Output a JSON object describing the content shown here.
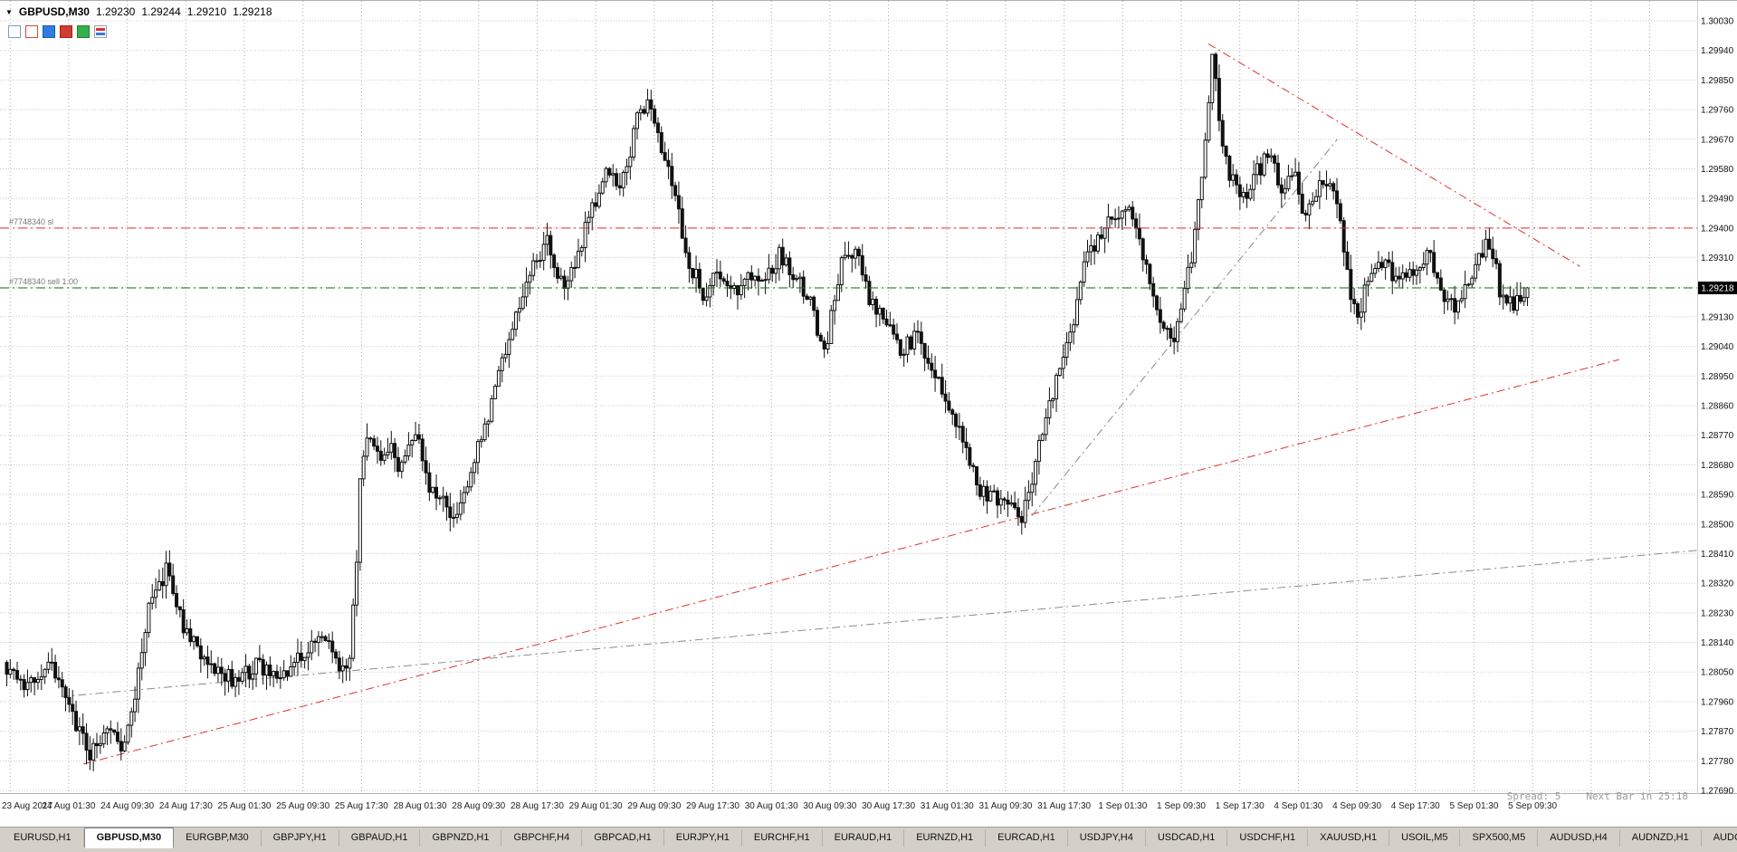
{
  "ui": {
    "icons": {
      "chart_menu": "▼"
    },
    "title": {
      "symbol": "GBPUSD,M30",
      "open": "1.29230",
      "high": "1.29244",
      "low": "1.29210",
      "close": "1.29218"
    },
    "toolbar": {
      "icons": [
        {
          "name": "outline-box-blue-icon",
          "fill": "#ffffff",
          "border": "#7a9cc4"
        },
        {
          "name": "outline-box-red-icon",
          "fill": "#ffffff",
          "border": "#d04a3a"
        },
        {
          "name": "filled-box-blue-icon",
          "fill": "#2f7de0",
          "border": "#2059a8"
        },
        {
          "name": "filled-box-red-icon",
          "fill": "#d23b2f",
          "border": "#a02318"
        },
        {
          "name": "filled-box-green-icon",
          "fill": "#35b04a",
          "border": "#1f8230"
        },
        {
          "name": "bid-ask-lines-icon",
          "fill": "#ffffff",
          "border": "#9aa0a6",
          "top_bar": "#e03030",
          "bottom_bar": "#2f7de0"
        }
      ]
    },
    "status": {
      "spread": "Spread: 5",
      "next_bar": "Next Bar in 25:18"
    },
    "tabs": [
      {
        "label": "EURUSD,H1",
        "active": false
      },
      {
        "label": "GBPUSD,M30",
        "active": true
      },
      {
        "label": "EURGBP,M30",
        "active": false
      },
      {
        "label": "GBPJPY,H1",
        "active": false
      },
      {
        "label": "GBPAUD,H1",
        "active": false
      },
      {
        "label": "GBPNZD,H1",
        "active": false
      },
      {
        "label": "GBPCHF,H4",
        "active": false
      },
      {
        "label": "GBPCAD,H1",
        "active": false
      },
      {
        "label": "EURJPY,H1",
        "active": false
      },
      {
        "label": "EURCHF,H1",
        "active": false
      },
      {
        "label": "EURAUD,H1",
        "active": false
      },
      {
        "label": "EURNZD,H1",
        "active": false
      },
      {
        "label": "EURCAD,H1",
        "active": false
      },
      {
        "label": "USDJPY,H4",
        "active": false
      },
      {
        "label": "USDCAD,H1",
        "active": false
      },
      {
        "label": "USDCHF,H1",
        "active": false
      },
      {
        "label": "XAUUSD,H1",
        "active": false
      },
      {
        "label": "USOIL,M5",
        "active": false
      },
      {
        "label": "SPX500,M5",
        "active": false
      },
      {
        "label": "AUDUSD,H4",
        "active": false
      },
      {
        "label": "AUDNZD,H1",
        "active": false
      },
      {
        "label": "AUDCAD,Daily",
        "active": false
      }
    ]
  },
  "chart_data": {
    "type": "candlestick",
    "symbol": "GBPUSD",
    "timeframe": "M30",
    "current_price": 1.29218,
    "current_price_label": "1.29218",
    "y_axis": {
      "min": 1.2769,
      "max": 1.3003,
      "tick_step": 0.0009,
      "ticks": [
        "1.30030",
        "1.29940",
        "1.29850",
        "1.29760",
        "1.29670",
        "1.29580",
        "1.29490",
        "1.29400",
        "1.29310",
        "1.29220",
        "1.29130",
        "1.29040",
        "1.28950",
        "1.28860",
        "1.28770",
        "1.28680",
        "1.28590",
        "1.28500",
        "1.28410",
        "1.28320",
        "1.28230",
        "1.28140",
        "1.28050",
        "1.27960",
        "1.27870",
        "1.27780",
        "1.27690"
      ]
    },
    "x_axis": {
      "labels": [
        "23 Aug 2017",
        "24 Aug 01:30",
        "24 Aug 09:30",
        "24 Aug 17:30",
        "25 Aug 01:30",
        "25 Aug 09:30",
        "25 Aug 17:30",
        "28 Aug 01:30",
        "28 Aug 09:30",
        "28 Aug 17:30",
        "29 Aug 01:30",
        "29 Aug 09:30",
        "29 Aug 17:30",
        "30 Aug 01:30",
        "30 Aug 09:30",
        "30 Aug 17:30",
        "31 Aug 01:30",
        "31 Aug 09:30",
        "31 Aug 17:30",
        "1 Sep 01:30",
        "1 Sep 09:30",
        "1 Sep 17:30",
        "4 Sep 01:30",
        "4 Sep 09:30",
        "4 Sep 17:30",
        "5 Sep 01:30",
        "5 Sep 09:30"
      ],
      "grid_start_frac": 0.006,
      "grid_step_frac": 0.0345,
      "extra_gridlines": 2
    },
    "order_lines": [
      {
        "label": "#7748340 sl",
        "price": 1.294,
        "color": "#e03030"
      },
      {
        "label": "#7748340 sell 1.00",
        "price": 1.29218,
        "color": "#0c7a0c"
      }
    ],
    "trend_lines": [
      {
        "name": "support-ascending-red",
        "x1": 0.049,
        "p1": 1.2777,
        "x2": 0.954,
        "p2": 1.29,
        "color": "#e03030"
      },
      {
        "name": "resistance-descending-red",
        "x1": 0.712,
        "p1": 1.2996,
        "x2": 0.931,
        "p2": 1.29283,
        "color": "#e03030"
      },
      {
        "name": "trend-shallow-gray",
        "x1": 0.036,
        "p1": 1.27975,
        "x2": 1.0,
        "p2": 1.2842,
        "color": "#8a8a8a"
      },
      {
        "name": "trend-steep-gray",
        "x1": 0.608,
        "p1": 1.28525,
        "x2": 0.788,
        "p2": 1.2967,
        "color": "#8a8a8a"
      }
    ],
    "series": {
      "count": 440,
      "seed": 9,
      "noise": 0.00055,
      "wick": 0.00045,
      "x_start": 0.004,
      "x_end": 0.9,
      "anchors": [
        [
          0.0,
          1.2806
        ],
        [
          0.012,
          1.27985
        ],
        [
          0.028,
          1.28095
        ],
        [
          0.042,
          1.27935
        ],
        [
          0.055,
          1.278
        ],
        [
          0.065,
          1.27885
        ],
        [
          0.075,
          1.2782
        ],
        [
          0.085,
          1.28
        ],
        [
          0.095,
          1.2828
        ],
        [
          0.105,
          1.2836
        ],
        [
          0.115,
          1.282
        ],
        [
          0.125,
          1.2812
        ],
        [
          0.138,
          1.2806
        ],
        [
          0.152,
          1.2802
        ],
        [
          0.165,
          1.2808
        ],
        [
          0.18,
          1.2802
        ],
        [
          0.195,
          1.281
        ],
        [
          0.207,
          1.2818
        ],
        [
          0.217,
          1.2808
        ],
        [
          0.224,
          1.2803
        ],
        [
          0.229,
          1.283
        ],
        [
          0.233,
          1.287
        ],
        [
          0.238,
          1.2878
        ],
        [
          0.245,
          1.2868
        ],
        [
          0.252,
          1.2876
        ],
        [
          0.258,
          1.2866
        ],
        [
          0.268,
          1.2878
        ],
        [
          0.278,
          1.2862
        ],
        [
          0.289,
          1.2856
        ],
        [
          0.296,
          1.285
        ],
        [
          0.306,
          1.2868
        ],
        [
          0.316,
          1.288
        ],
        [
          0.326,
          1.29
        ],
        [
          0.336,
          1.2916
        ],
        [
          0.346,
          1.2928
        ],
        [
          0.356,
          1.2936
        ],
        [
          0.365,
          1.2922
        ],
        [
          0.375,
          1.2932
        ],
        [
          0.385,
          1.2945
        ],
        [
          0.395,
          1.2958
        ],
        [
          0.404,
          1.2952
        ],
        [
          0.414,
          1.2972
        ],
        [
          0.424,
          1.2978
        ],
        [
          0.432,
          1.2962
        ],
        [
          0.44,
          1.2948
        ],
        [
          0.448,
          1.293
        ],
        [
          0.458,
          1.292
        ],
        [
          0.468,
          1.2928
        ],
        [
          0.478,
          1.292
        ],
        [
          0.488,
          1.2928
        ],
        [
          0.498,
          1.2922
        ],
        [
          0.508,
          1.2932
        ],
        [
          0.518,
          1.2926
        ],
        [
          0.528,
          1.2918
        ],
        [
          0.538,
          1.2902
        ],
        [
          0.548,
          1.2928
        ],
        [
          0.558,
          1.2934
        ],
        [
          0.568,
          1.2918
        ],
        [
          0.578,
          1.2912
        ],
        [
          0.588,
          1.2902
        ],
        [
          0.598,
          1.2908
        ],
        [
          0.608,
          1.2898
        ],
        [
          0.618,
          1.2888
        ],
        [
          0.628,
          1.2878
        ],
        [
          0.638,
          1.2862
        ],
        [
          0.648,
          1.2858
        ],
        [
          0.658,
          1.2856
        ],
        [
          0.668,
          1.2852
        ],
        [
          0.678,
          1.2872
        ],
        [
          0.688,
          1.289
        ],
        [
          0.698,
          1.2905
        ],
        [
          0.708,
          1.2928
        ],
        [
          0.718,
          1.2938
        ],
        [
          0.728,
          1.2943
        ],
        [
          0.738,
          1.2948
        ],
        [
          0.748,
          1.293
        ],
        [
          0.758,
          1.2912
        ],
        [
          0.768,
          1.2908
        ],
        [
          0.778,
          1.2928
        ],
        [
          0.786,
          1.2955
        ],
        [
          0.793,
          1.2994
        ],
        [
          0.798,
          1.297
        ],
        [
          0.803,
          1.2956
        ],
        [
          0.809,
          1.2952
        ],
        [
          0.816,
          1.2948
        ],
        [
          0.823,
          1.2958
        ],
        [
          0.831,
          1.2962
        ],
        [
          0.839,
          1.2952
        ],
        [
          0.846,
          1.2958
        ],
        [
          0.853,
          1.2944
        ],
        [
          0.861,
          1.2952
        ],
        [
          0.869,
          1.2954
        ],
        [
          0.876,
          1.2946
        ],
        [
          0.883,
          1.292
        ],
        [
          0.889,
          1.2914
        ],
        [
          0.896,
          1.2926
        ],
        [
          0.905,
          1.293
        ],
        [
          0.915,
          1.2922
        ],
        [
          0.925,
          1.2928
        ],
        [
          0.935,
          1.2932
        ],
        [
          0.945,
          1.292
        ],
        [
          0.955,
          1.2915
        ],
        [
          0.965,
          1.2928
        ],
        [
          0.975,
          1.2936
        ],
        [
          0.985,
          1.2915
        ],
        [
          1.0,
          1.29218
        ]
      ]
    }
  }
}
